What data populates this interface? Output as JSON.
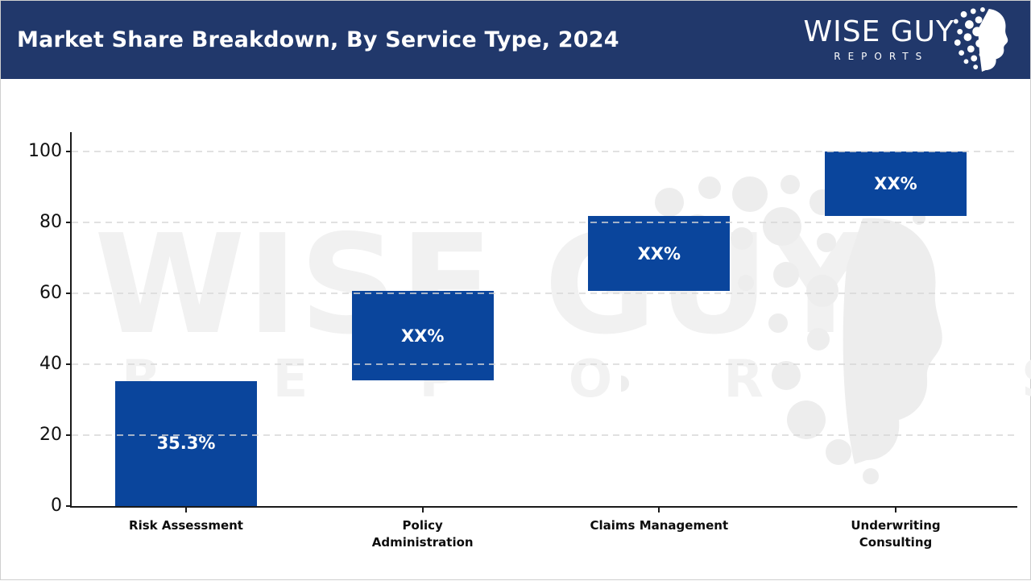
{
  "header": {
    "title": "Market Share Breakdown, By Service Type, 2024",
    "logo": {
      "line1": "WISE GUY",
      "line2": "REPORTS"
    }
  },
  "watermark": {
    "line1": "WISE GUY",
    "line2": "R E P O R T S"
  },
  "chart_data": {
    "type": "bar",
    "subtype": "waterfall",
    "title": "Market Share Breakdown, By Service Type, 2024",
    "categories": [
      "Risk Assessment",
      "Policy Administration",
      "Claims Management",
      "Underwriting Consulting"
    ],
    "segments": [
      {
        "category": "Risk Assessment",
        "start": 0,
        "end": 35.3,
        "label": "35.3%"
      },
      {
        "category": "Policy Administration",
        "start": 35.5,
        "end": 60.7,
        "label": "XX%"
      },
      {
        "category": "Claims Management",
        "start": 60.7,
        "end": 81.8,
        "label": "XX%"
      },
      {
        "category": "Underwriting Consulting",
        "start": 81.8,
        "end": 100,
        "label": "XX%"
      }
    ],
    "yticks": [
      0,
      20,
      40,
      60,
      80,
      100
    ],
    "ylim": [
      0,
      105
    ],
    "xlabel": "",
    "ylabel": "",
    "grid": "horizontal-dashed",
    "legend": "none",
    "bar_color": "#0a459c",
    "value_label_color": "#ffffff"
  },
  "colors": {
    "header_bg": "#21386b",
    "bar": "#0a459c",
    "axis": "#1a1a1a",
    "grid_line": "#d7d7d7",
    "watermark": "#f1f1f1",
    "page_border": "#cfcfcf"
  }
}
